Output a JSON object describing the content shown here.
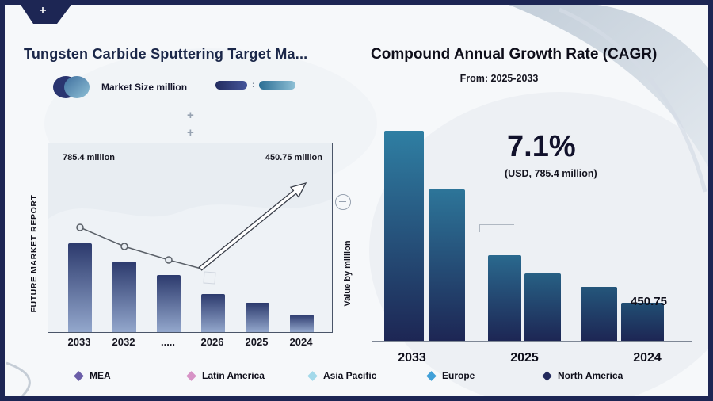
{
  "header": {
    "market_size_legend": "Market Size million"
  },
  "colors": {
    "frame": "#1d2654",
    "left_bar_top": "#2c3a6d",
    "left_bar_bottom": "#93a7cc",
    "right_bar_bottom": "#1d2654",
    "right_bar_tops": [
      "#2f7fa3",
      "#2d7599",
      "#2a698e",
      "#276084",
      "#24567b",
      "#214e73"
    ],
    "accent_teal": "#2f7fa3",
    "accent_navy": "#27306b"
  },
  "chart_data": [
    {
      "type": "bar",
      "title": "Tungsten Carbide Sputtering Target Ma...",
      "ylabel": "FUTURE MARKET REPORT",
      "categories": [
        "2033",
        "2032",
        ".....",
        "2026",
        "2025",
        "2024"
      ],
      "values_relative": [
        112,
        89,
        72,
        48,
        37,
        22
      ],
      "annotations": [
        {
          "text": "785.4 million",
          "position": "top-left"
        },
        {
          "text": "450.75 million",
          "position": "top-right"
        }
      ],
      "extras": [
        "declining trend line with circle markers over 2033-2026",
        "rising outlined growth arrow toward top-right"
      ],
      "legend": [
        "Market Size million"
      ],
      "axis_order": "reversed (2033 tallest at left, 2024 shortest at right)"
    },
    {
      "type": "bar",
      "title": "Compound Annual Growth Rate (CAGR)",
      "subtitle": "From: 2025-2033",
      "ylabel": "Value by million",
      "categories": [
        "2033",
        "2025",
        "2024"
      ],
      "bars_per_category": 2,
      "values_relative": [
        265,
        191,
        108,
        85,
        68,
        48
      ],
      "data_labels": [
        {
          "text": "450.75",
          "category": "2024"
        }
      ],
      "kpi": {
        "value": "7.1%",
        "detail": "(USD, 785.4 million)"
      },
      "known_values": {
        "2033": 785.4,
        "2024": 450.75
      }
    }
  ],
  "bottom_legend": [
    {
      "label": "MEA",
      "color": "#6b5ea8"
    },
    {
      "label": "Latin America",
      "color": "#d793c6"
    },
    {
      "label": "Asia Pacific",
      "color": "#a3d9ea"
    },
    {
      "label": "Europe",
      "color": "#41a0d8"
    },
    {
      "label": "North America",
      "color": "#232a5c"
    }
  ]
}
